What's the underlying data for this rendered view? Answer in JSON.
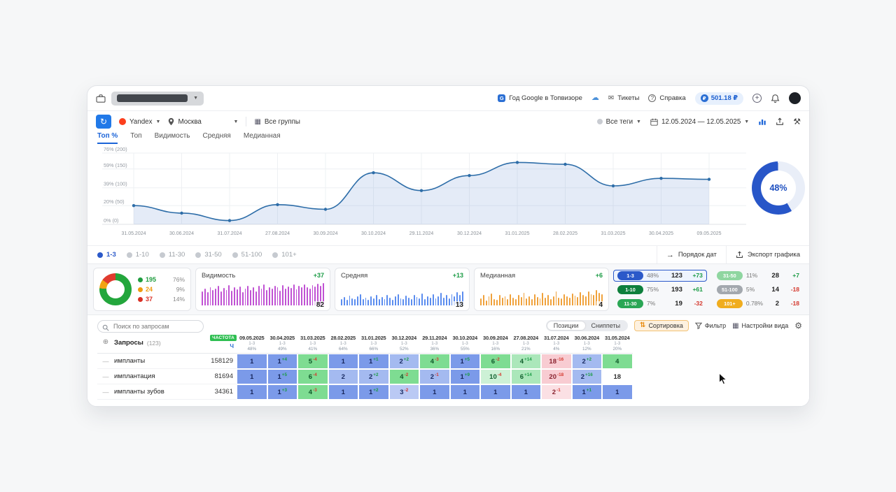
{
  "topbar": {
    "google_year": "Год Google в Топвизоре",
    "tickets": "Тикеты",
    "help": "Справка",
    "balance": "501.18 ₽"
  },
  "toolbar": {
    "search_engine": "Yandex",
    "region": "Москва",
    "groups": "Все группы",
    "tags": "Все теги",
    "date_range": "12.05.2024 — 12.05.2025"
  },
  "tabs": {
    "items": [
      {
        "label": "Топ %",
        "active": true
      },
      {
        "label": "Топ",
        "active": false
      },
      {
        "label": "Видимость",
        "active": false
      },
      {
        "label": "Средняя",
        "active": false
      },
      {
        "label": "Медианная",
        "active": false
      }
    ]
  },
  "chart_data": {
    "type": "line",
    "title": "Топ %",
    "series_name": "1-3",
    "x": [
      "31.05.2024",
      "30.06.2024",
      "31.07.2024",
      "27.08.2024",
      "30.09.2024",
      "30.10.2024",
      "29.11.2024",
      "30.12.2024",
      "31.01.2025",
      "28.02.2025",
      "31.03.2025",
      "30.04.2025",
      "09.05.2025"
    ],
    "values": [
      20,
      12,
      4,
      21,
      16,
      55,
      36,
      52,
      66,
      64,
      41,
      49,
      48
    ],
    "y_ticks": [
      {
        "label": "76% (200)",
        "value": 76
      },
      {
        "label": "59% (150)",
        "value": 59
      },
      {
        "label": "39% (100)",
        "value": 39
      },
      {
        "label": "20% (50)",
        "value": 20
      },
      {
        "label": "0% (0)",
        "value": 0
      }
    ],
    "ylim": [
      0,
      76
    ],
    "line_color": "#2d6da8",
    "fill_color": "rgba(120,155,215,0.20)",
    "grid": true,
    "legend_position": "bottom"
  },
  "gauge": {
    "label": "48%",
    "percent": 48,
    "color": "#2856c8"
  },
  "chart_legend": {
    "items": [
      {
        "label": "1-3",
        "active": true
      },
      {
        "label": "1-10",
        "active": false
      },
      {
        "label": "11-30",
        "active": false
      },
      {
        "label": "31-50",
        "active": false
      },
      {
        "label": "51-100",
        "active": false
      },
      {
        "label": "101+",
        "active": false
      }
    ],
    "order_dates": "Порядок дат",
    "export_chart": "Экспорт графика"
  },
  "summary": {
    "donut": {
      "segments": [
        {
          "color": "#23a63c",
          "pct": 76
        },
        {
          "color": "#f2a413",
          "pct": 9
        },
        {
          "color": "#e03b2f",
          "pct": 15
        }
      ],
      "legend": [
        {
          "value": "195",
          "pct": "76%",
          "color": "#1f9d3f"
        },
        {
          "value": "24",
          "pct": "9%",
          "color": "#ef9b0f"
        },
        {
          "value": "37",
          "pct": "14%",
          "color": "#d93025"
        }
      ]
    },
    "panels": [
      {
        "title": "Видимость",
        "delta": "+37",
        "value": "82",
        "bar_color": "#c052d3",
        "bars": [
          62,
          74,
          58,
          80,
          66,
          72,
          84,
          60,
          76,
          68,
          88,
          64,
          78,
          70,
          82,
          58,
          74,
          86,
          66,
          78,
          62,
          84,
          72,
          90,
          68,
          80,
          74,
          86,
          78,
          64,
          88,
          72,
          82,
          76,
          90,
          70,
          84,
          78,
          92,
          80,
          74,
          88,
          82,
          94,
          86,
          96
        ]
      },
      {
        "title": "Средняя",
        "delta": "+13",
        "value": "13",
        "bar_color": "#5b8def",
        "bars": [
          28,
          36,
          24,
          42,
          30,
          26,
          38,
          48,
          28,
          34,
          24,
          40,
          30,
          46,
          26,
          36,
          28,
          44,
          32,
          24,
          38,
          50,
          30,
          26,
          42,
          34,
          28,
          46,
          36,
          30,
          52,
          28,
          40,
          34,
          48,
          30,
          38,
          54,
          34,
          44,
          30,
          50,
          40,
          58,
          46,
          60
        ]
      },
      {
        "title": "Медианная",
        "delta": "+6",
        "value": "4",
        "bar_color": "#f0a23c",
        "bars": [
          30,
          45,
          22,
          38,
          52,
          28,
          24,
          46,
          34,
          40,
          26,
          50,
          32,
          28,
          44,
          36,
          54,
          30,
          38,
          26,
          48,
          36,
          30,
          56,
          32,
          44,
          28,
          40,
          60,
          34,
          30,
          48,
          38,
          32,
          52,
          42,
          36,
          58,
          46,
          40,
          62,
          50,
          44,
          66,
          54,
          48
        ]
      }
    ],
    "stats": [
      {
        "range": "1-3",
        "color": "#2b59c9",
        "pct": "48%",
        "count": "123",
        "delta": "+73",
        "selected": true
      },
      {
        "range": "31-50",
        "color": "#8fd6a0",
        "pct": "11%",
        "count": "28",
        "delta": "+7",
        "selected": false
      },
      {
        "range": "1-10",
        "color": "#0e7f3c",
        "pct": "75%",
        "count": "193",
        "delta": "+61",
        "selected": false
      },
      {
        "range": "51-100",
        "color": "#a3a8ae",
        "pct": "5%",
        "count": "14",
        "delta": "-18",
        "selected": false
      },
      {
        "range": "11-30",
        "color": "#2aa655",
        "pct": "7%",
        "count": "19",
        "delta": "-32",
        "selected": false
      },
      {
        "range": "101+",
        "color": "#f0ad1e",
        "pct": "0.78%",
        "count": "2",
        "delta": "-18",
        "selected": false
      }
    ]
  },
  "controls": {
    "search_placeholder": "Поиск по запросам",
    "positions": "Позиции",
    "snippets": "Сниппеты",
    "sort": "Сортировка",
    "filter": "Фильтр",
    "view_settings": "Настройки вида"
  },
  "table": {
    "queries_label": "Запросы",
    "queries_count": "(123)",
    "frequency_label": "ЧАСТОТА",
    "frequency_col": "Ч",
    "cell_colors": {
      "b1": {
        "bg": "#7b9ae9",
        "fg": "#17265c"
      },
      "b2": {
        "bg": "#a4baf0",
        "fg": "#1b2d64"
      },
      "b3": {
        "bg": "#bac9f4",
        "fg": "#1b2d64"
      },
      "g1": {
        "bg": "#7edc92",
        "fg": "#0f5a2a"
      },
      "g2": {
        "bg": "#abe7ba",
        "fg": "#11602e"
      },
      "g3": {
        "bg": "#cdf1d6",
        "fg": "#11602e"
      },
      "p": {
        "bg": "#f8ccd2",
        "fg": "#8a2430"
      },
      "p2": {
        "bg": "#fbe0e4",
        "fg": "#8a2430"
      },
      "w": {
        "bg": "#ffffff",
        "fg": "#333333"
      }
    },
    "columns": [
      {
        "date": "09.05.2025",
        "range": "1-3",
        "pct": "48%"
      },
      {
        "date": "30.04.2025",
        "range": "1-3",
        "pct": "49%"
      },
      {
        "date": "31.03.2025",
        "range": "1-3",
        "pct": "41%"
      },
      {
        "date": "28.02.2025",
        "range": "1-3",
        "pct": "64%"
      },
      {
        "date": "31.01.2025",
        "range": "1-3",
        "pct": "66%"
      },
      {
        "date": "30.12.2024",
        "range": "1-3",
        "pct": "52%"
      },
      {
        "date": "29.11.2024",
        "range": "1-3",
        "pct": "36%"
      },
      {
        "date": "30.10.2024",
        "range": "1-3",
        "pct": "55%"
      },
      {
        "date": "30.09.2024",
        "range": "1-3",
        "pct": "16%"
      },
      {
        "date": "27.08.2024",
        "range": "1-3",
        "pct": "21%"
      },
      {
        "date": "31.07.2024",
        "range": "1-3",
        "pct": "4%"
      },
      {
        "date": "30.06.2024",
        "range": "1-3",
        "pct": "12%"
      },
      {
        "date": "31.05.2024",
        "range": "1-3",
        "pct": "20%"
      }
    ],
    "rows": [
      {
        "query": "импланты",
        "frequency": "158129",
        "cells": [
          [
            "1",
            "",
            "b1"
          ],
          [
            "1",
            "+4",
            "b1"
          ],
          [
            "5",
            "-4",
            "g1"
          ],
          [
            "1",
            "",
            "b1"
          ],
          [
            "1",
            "+1",
            "b1"
          ],
          [
            "2",
            "+2",
            "b2"
          ],
          [
            "4",
            "-3",
            "g1"
          ],
          [
            "1",
            "+5",
            "b1"
          ],
          [
            "6",
            "-2",
            "g1"
          ],
          [
            "4",
            "+14",
            "g2"
          ],
          [
            "18",
            "-16",
            "p"
          ],
          [
            "2",
            "+2",
            "b2"
          ],
          [
            "4",
            "",
            "g1"
          ]
        ]
      },
      {
        "query": "имплантация",
        "frequency": "81694",
        "cells": [
          [
            "1",
            "",
            "b1"
          ],
          [
            "1",
            "+5",
            "b1"
          ],
          [
            "6",
            "-4",
            "g1"
          ],
          [
            "2",
            "",
            "b2"
          ],
          [
            "2",
            "+2",
            "b2"
          ],
          [
            "4",
            "-2",
            "g1"
          ],
          [
            "2",
            "-1",
            "b2"
          ],
          [
            "1",
            "+9",
            "b1"
          ],
          [
            "10",
            "-4",
            "g3"
          ],
          [
            "6",
            "+14",
            "g2"
          ],
          [
            "20",
            "-18",
            "p"
          ],
          [
            "2",
            "+16",
            "b2"
          ],
          [
            "18",
            "",
            "w"
          ]
        ]
      },
      {
        "query": "импланты зубов",
        "frequency": "34361",
        "cells": [
          [
            "1",
            "",
            "b1"
          ],
          [
            "1",
            "+3",
            "b1"
          ],
          [
            "4",
            "-3",
            "g1"
          ],
          [
            "1",
            "",
            "b1"
          ],
          [
            "1",
            "+2",
            "b1"
          ],
          [
            "3",
            "-2",
            "b3"
          ],
          [
            "1",
            "",
            "b1"
          ],
          [
            "1",
            "",
            "b1"
          ],
          [
            "1",
            "",
            "b1"
          ],
          [
            "1",
            "",
            "b1"
          ],
          [
            "2",
            "-1",
            "p2"
          ],
          [
            "1",
            "+1",
            "b1"
          ],
          [
            "1",
            "",
            "b1"
          ]
        ]
      }
    ]
  }
}
